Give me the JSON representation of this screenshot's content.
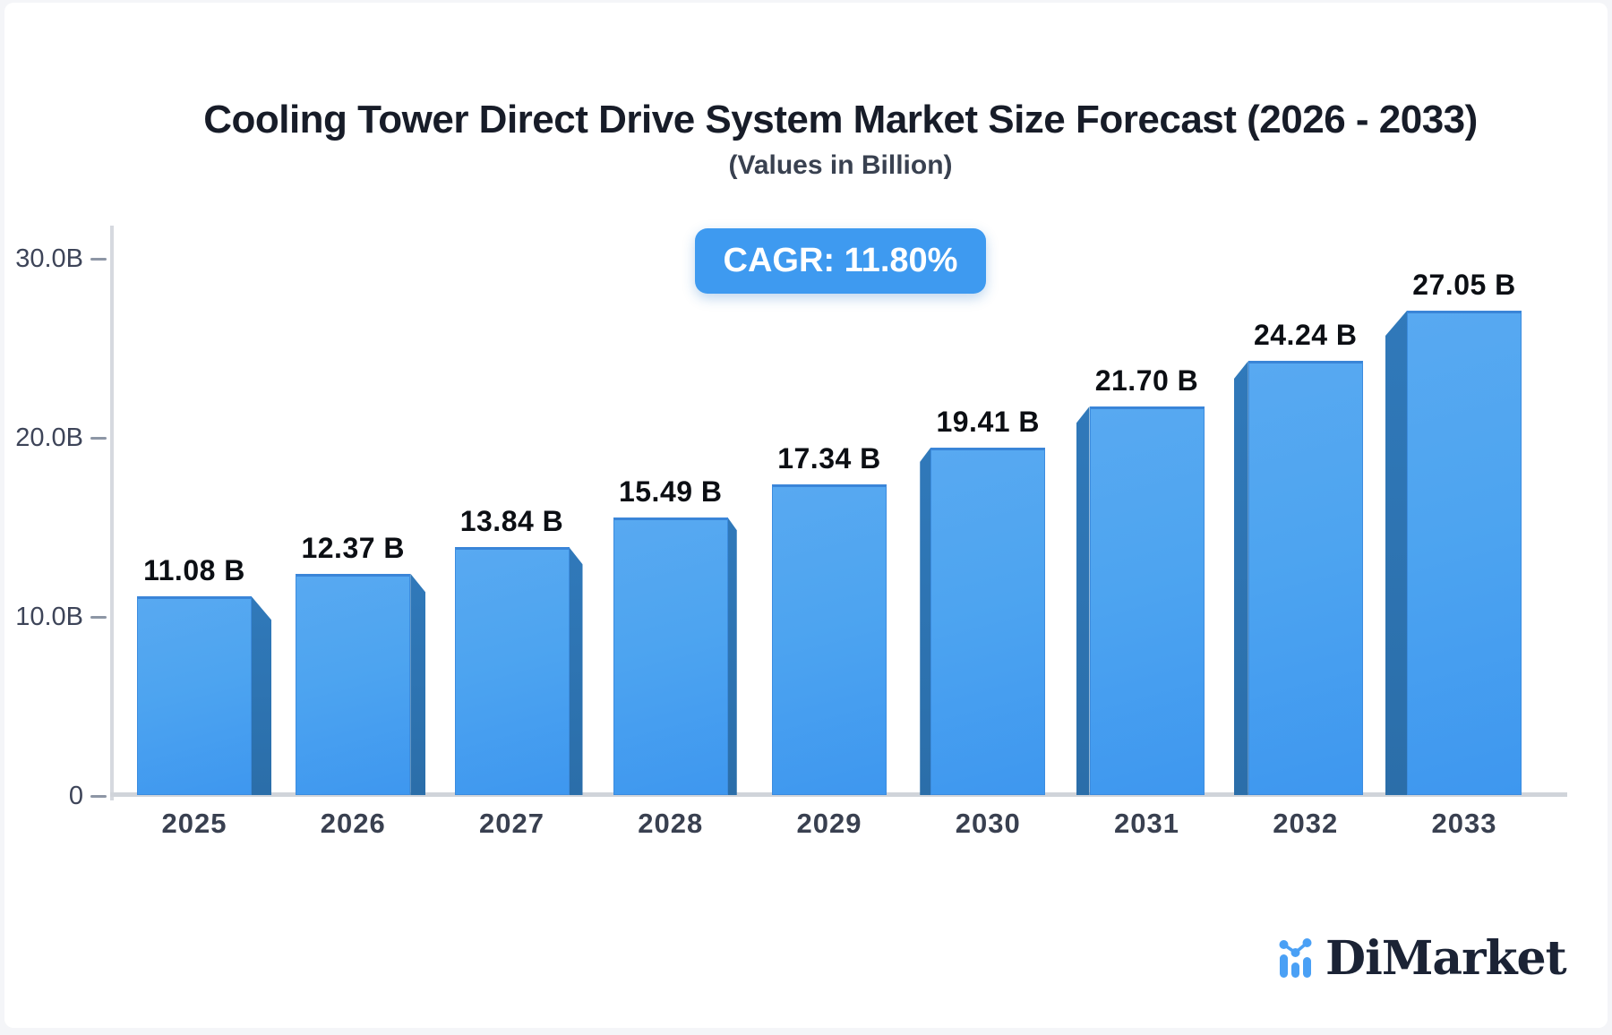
{
  "header": {
    "title": "Cooling Tower Direct Drive System Market Size Forecast (2026 - 2033)",
    "subtitle": "(Values in Billion)",
    "badge": "CAGR: 11.80%"
  },
  "chart_data": {
    "type": "bar",
    "title": "Cooling Tower Direct Drive System Market Size Forecast (2026 - 2033)",
    "subtitle": "(Values in Billion)",
    "cagr_label": "CAGR: 11.80%",
    "categories": [
      "2025",
      "2026",
      "2027",
      "2028",
      "2029",
      "2030",
      "2031",
      "2032",
      "2033"
    ],
    "values": [
      11.08,
      12.37,
      13.84,
      15.49,
      17.34,
      19.41,
      21.7,
      24.24,
      27.05
    ],
    "value_labels": [
      "11.08 B",
      "12.37 B",
      "13.84 B",
      "15.49 B",
      "17.34 B",
      "19.41 B",
      "21.70 B",
      "24.24 B",
      "27.05 B"
    ],
    "unit": "Billion",
    "xlabel": "",
    "ylabel": "",
    "y_ticks": [
      {
        "value": 0,
        "label": "0"
      },
      {
        "value": 10,
        "label": "10.0B"
      },
      {
        "value": 20,
        "label": "20.0B"
      },
      {
        "value": 30,
        "label": "30.0B"
      }
    ],
    "ylim": [
      0,
      30
    ],
    "grid": "off",
    "legend": "none",
    "bar_3d_sides": [
      "right",
      "right",
      "right",
      "right",
      "none",
      "left",
      "left",
      "left",
      "left"
    ],
    "bar_side_widths": [
      22,
      17,
      15,
      10,
      0,
      12,
      15,
      16,
      24
    ]
  },
  "colors": {
    "badge_background": "#3e9af0",
    "badge_text": "#ffffff",
    "bar_face_top": "#58a9f1",
    "bar_face_bottom": "#3e97ef",
    "bar_side": "#2e74b1",
    "bar_edge": "#3a85d8",
    "axis_line": "#d3d7dd",
    "tick_text": "#3d4458",
    "value_text": "#0c0f14",
    "title_text": "#171c28",
    "logo_blue": "#4aa0f5",
    "logo_navy": "#1b2335"
  },
  "logo": {
    "text": "DiMarket",
    "icon": "bar-chart-logo-icon"
  }
}
